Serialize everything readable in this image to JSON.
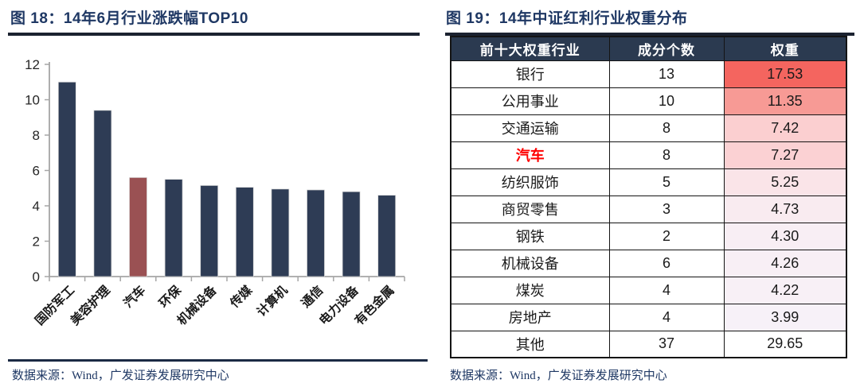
{
  "left_panel": {
    "title": "图 18：14年6月行业涨跌幅TOP10",
    "source": "数据来源：Wind，广发证券发展研究中心"
  },
  "right_panel": {
    "title": "图 19：14年中证红利行业权重分布",
    "source": "数据来源：Wind，广发证券发展研究中心"
  },
  "colors": {
    "title_navy": "#1F3864",
    "bar_navy": "#2E3C55",
    "bar_highlight_red": "#9A5153",
    "table_header_bg": "#2B3A50",
    "highlight_text_red": "#FF0000",
    "axis_gray": "#A6A6A6",
    "strong_cell_red": "#F4655F"
  },
  "chart_data": [
    {
      "type": "bar",
      "title": "14年6月行业涨跌幅TOP10",
      "categories": [
        "国防军工",
        "美容护理",
        "汽车",
        "环保",
        "机械设备",
        "传媒",
        "计算机",
        "通信",
        "电力设备",
        "有色金属"
      ],
      "values": [
        11.0,
        9.4,
        5.6,
        5.5,
        5.15,
        5.05,
        4.95,
        4.9,
        4.8,
        4.6
      ],
      "highlight_index": 2,
      "bar_color": "#2E3C55",
      "highlight_color": "#9A5153",
      "xlabel": "",
      "ylabel": "",
      "ylim": [
        0,
        12
      ],
      "ytick_step": 2,
      "yticks": [
        0,
        2,
        4,
        6,
        8,
        10,
        12
      ],
      "grid": false,
      "legend": null,
      "x_labels_rotation_deg": 45
    },
    {
      "type": "table",
      "title": "14年中证红利行业权重分布",
      "columns": [
        "前十大权重行业",
        "成分个数",
        "权重"
      ],
      "rows": [
        {
          "industry": "银行",
          "count": 13,
          "weight": "17.53",
          "weight_bg": "#F4655F",
          "highlight": false
        },
        {
          "industry": "公用事业",
          "count": 10,
          "weight": "11.35",
          "weight_bg": "#F79A95",
          "highlight": false
        },
        {
          "industry": "交通运输",
          "count": 8,
          "weight": "7.42",
          "weight_bg": "#FBCFD0",
          "highlight": false
        },
        {
          "industry": "汽车",
          "count": 8,
          "weight": "7.27",
          "weight_bg": "#FBD1D3",
          "highlight": true
        },
        {
          "industry": "纺织服饰",
          "count": 5,
          "weight": "5.25",
          "weight_bg": "#FAE4E8",
          "highlight": false
        },
        {
          "industry": "商贸零售",
          "count": 3,
          "weight": "4.73",
          "weight_bg": "#F9EBF0",
          "highlight": false
        },
        {
          "industry": "钢铁",
          "count": 2,
          "weight": "4.30",
          "weight_bg": "#F8EEF4",
          "highlight": false
        },
        {
          "industry": "机械设备",
          "count": 6,
          "weight": "4.26",
          "weight_bg": "#F8EFF5",
          "highlight": false
        },
        {
          "industry": "煤炭",
          "count": 4,
          "weight": "4.22",
          "weight_bg": "#F8F0F6",
          "highlight": false
        },
        {
          "industry": "房地产",
          "count": 4,
          "weight": "3.99",
          "weight_bg": "#F7F1F8",
          "highlight": false
        },
        {
          "industry": "其他",
          "count": 37,
          "weight": "29.65",
          "weight_bg": "#FFFFFF",
          "highlight": false
        }
      ]
    }
  ]
}
